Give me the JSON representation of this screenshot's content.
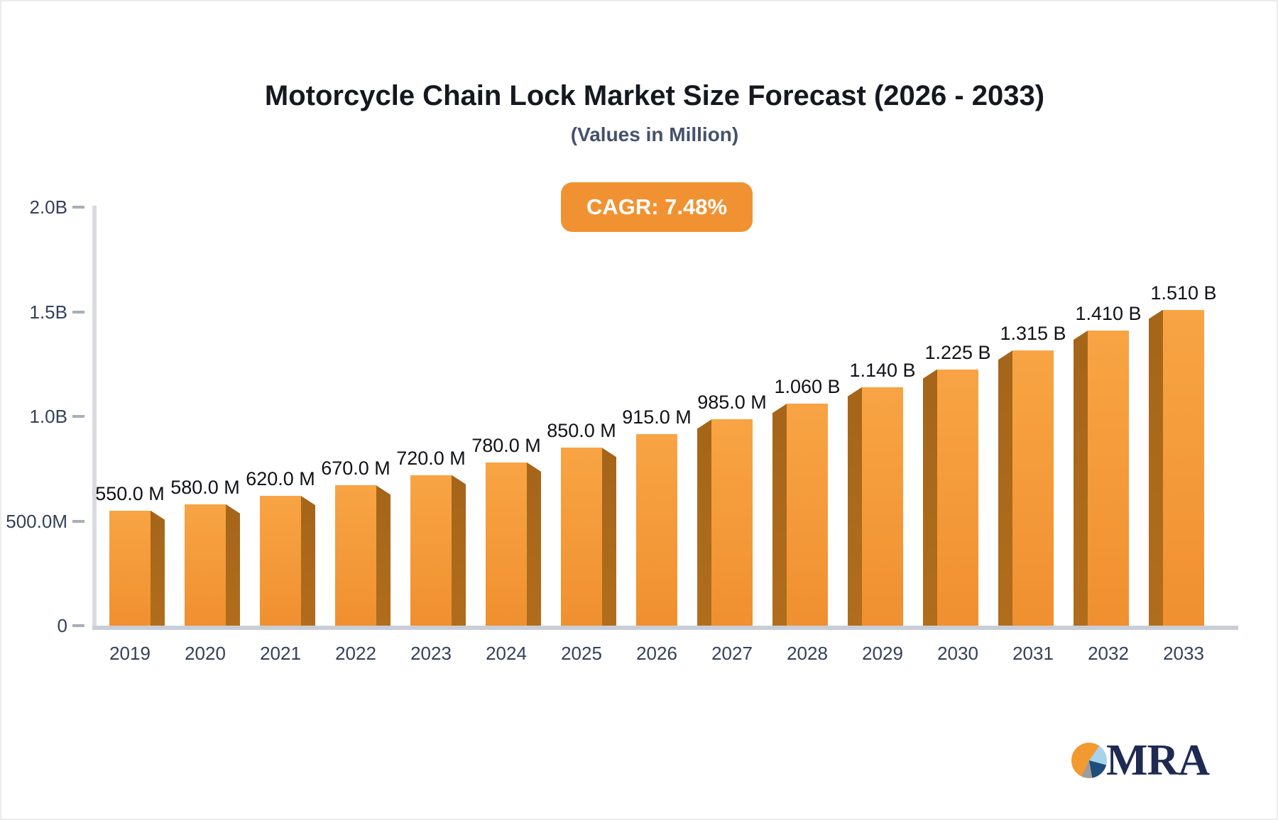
{
  "header": {
    "title": "Motorcycle Chain Lock Market Size Forecast (2026 - 2033)",
    "subtitle": "(Values in Million)",
    "cagr_badge": "CAGR: 7.48%"
  },
  "chart_data": {
    "type": "bar",
    "title": "Motorcycle Chain Lock Market Size Forecast (2026 - 2033)",
    "subtitle": "(Values in Million)",
    "annotation": "CAGR: 7.48%",
    "categories": [
      "2019",
      "2020",
      "2021",
      "2022",
      "2023",
      "2024",
      "2025",
      "2026",
      "2027",
      "2028",
      "2029",
      "2030",
      "2031",
      "2032",
      "2033"
    ],
    "values_in_millions": [
      550,
      580,
      620,
      670,
      720,
      780,
      850,
      915,
      985,
      1060,
      1140,
      1225,
      1315,
      1410,
      1510
    ],
    "value_labels": [
      "550.0 M",
      "580.0 M",
      "620.0 M",
      "670.0 M",
      "720.0 M",
      "780.0 M",
      "850.0 M",
      "915.0 M",
      "985.0 M",
      "1.060 B",
      "1.140 B",
      "1.225 B",
      "1.315 B",
      "1.410 B",
      "1.510 B"
    ],
    "xlabel": "",
    "ylabel": "",
    "ylim": [
      0,
      2000
    ],
    "y_ticks": [
      {
        "label": "2.0B",
        "value": 2000
      },
      {
        "label": "1.5B",
        "value": 1500
      },
      {
        "label": "1.0B",
        "value": 1000
      },
      {
        "label": "500.0M",
        "value": 500
      },
      {
        "label": "0",
        "value": 0
      }
    ],
    "legend": "none",
    "grid": "off",
    "bar_style": "3d perspective bars, side bevel faces away from center bar (2026)"
  },
  "branding": {
    "logo_text": "MRA",
    "logo_icon": "pie-chart"
  },
  "colors": {
    "bar_face_top": "#f8a444",
    "bar_face_bottom": "#f09030",
    "bar_side": "#b06d1c",
    "bar_side_dark": "#a5651a",
    "badge_bg": "#f19232",
    "badge_text": "#ffffff",
    "title_text": "#15181f",
    "subtitle_text": "#45526b",
    "axis_text": "#34415c",
    "value_label_text": "#101217",
    "axis_line": "#d9dbdf",
    "baseline": "#c9ced6",
    "tick_dash": "#a9aeb8",
    "logo_navy": "#1e2a52"
  }
}
